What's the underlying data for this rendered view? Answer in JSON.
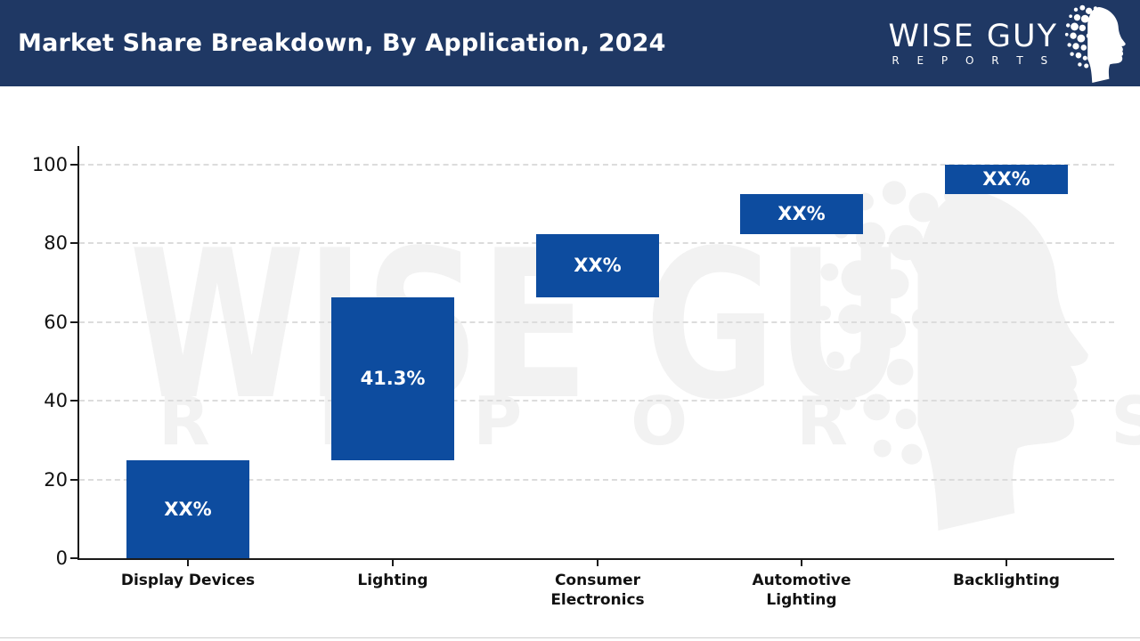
{
  "header": {
    "title": "Market Share Breakdown, By Application, 2024",
    "background_color": "#1f3864",
    "logo": {
      "line1": "WISE GUY",
      "line2": "R E P O R T S"
    }
  },
  "watermark": {
    "line1": "WISE GUY",
    "line2": "R E P O R T S"
  },
  "chart_data": {
    "type": "bar",
    "subtype": "waterfall",
    "title": "Market Share Breakdown, By Application, 2024",
    "categories": [
      "Display Devices",
      "Lighting",
      "Consumer Electronics",
      "Automotive Lighting",
      "Backlighting"
    ],
    "segments": [
      {
        "category": "Display Devices",
        "label": "XX%",
        "label_lines": [
          "Display Devices"
        ],
        "start": 0,
        "end": 24.9
      },
      {
        "category": "Lighting",
        "label": "41.3%",
        "label_lines": [
          "Lighting"
        ],
        "start": 24.9,
        "end": 66.2
      },
      {
        "category": "Consumer Electronics",
        "label": "XX%",
        "label_lines": [
          "Consumer",
          "Electronics"
        ],
        "start": 66.2,
        "end": 82.3
      },
      {
        "category": "Automotive Lighting",
        "label": "XX%",
        "label_lines": [
          "Automotive",
          "Lighting"
        ],
        "start": 82.3,
        "end": 92.4
      },
      {
        "category": "Backlighting",
        "label": "XX%",
        "label_lines": [
          "Backlighting"
        ],
        "start": 92.4,
        "end": 100
      }
    ],
    "ylabel": "",
    "xlabel": "",
    "yticks": [
      0,
      20,
      40,
      60,
      80,
      100
    ],
    "ytick_labels": [
      "0",
      "20",
      "40",
      "60",
      "80",
      "100"
    ],
    "ylim": [
      0,
      104.5
    ],
    "bar_color": "#0d4c9f",
    "bar_label_color": "#ffffff",
    "axis_color": "#1a1a1a",
    "grid": {
      "horizontal": true,
      "style": "dashed",
      "color": "#dcdcdc"
    },
    "legend": "none"
  }
}
